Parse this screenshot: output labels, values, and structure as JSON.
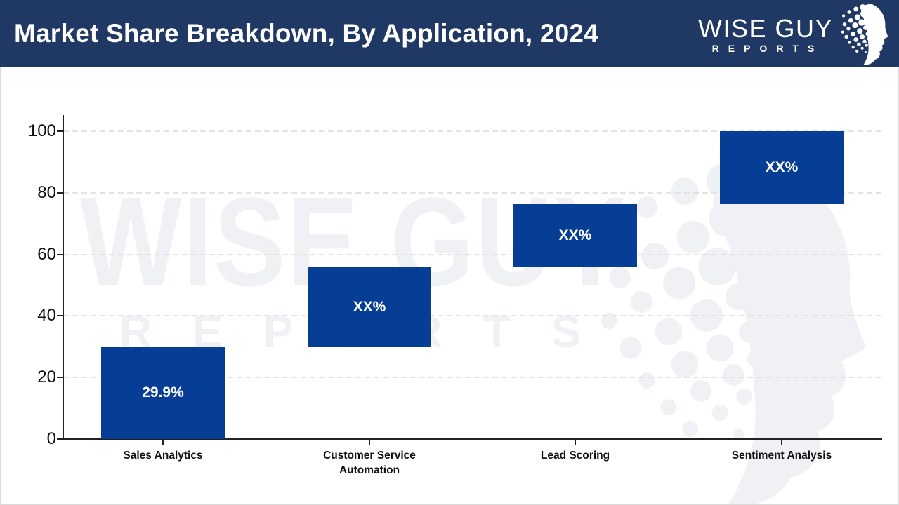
{
  "header": {
    "title": "Market Share Breakdown, By Application, 2024",
    "logo_line1": "WISE GUY",
    "logo_line2": "REPORTS"
  },
  "watermark": {
    "line1": "WISE GUY",
    "line2": "REPORTS"
  },
  "colors": {
    "header_bg": "#203864",
    "bar": "#053e94",
    "watermark": "#f0f1f4",
    "gridline": "#e3e3e4",
    "axis": "#222222",
    "bar_label_text": "#ffffff"
  },
  "chart_data": {
    "type": "bar",
    "subtype": "floating-waterfall",
    "title": "Market Share Breakdown, By Application, 2024",
    "categories": [
      "Sales Analytics",
      "Customer Service Automation",
      "Lead Scoring",
      "Sentiment Analysis"
    ],
    "values": [
      29.9,
      26.0,
      20.5,
      23.6
    ],
    "cumulative_start": [
      0,
      29.9,
      55.9,
      76.4
    ],
    "cumulative_end": [
      29.9,
      55.9,
      76.4,
      100
    ],
    "bar_labels": [
      "29.9%",
      "XX%",
      "XX%",
      "XX%"
    ],
    "xlabel": "",
    "ylabel": "",
    "ylim": [
      0,
      100
    ],
    "yticks": [
      0,
      20,
      40,
      60,
      80,
      100
    ],
    "grid": "horizontal-dashed",
    "legend": "none",
    "bar_color": "#053e94"
  }
}
